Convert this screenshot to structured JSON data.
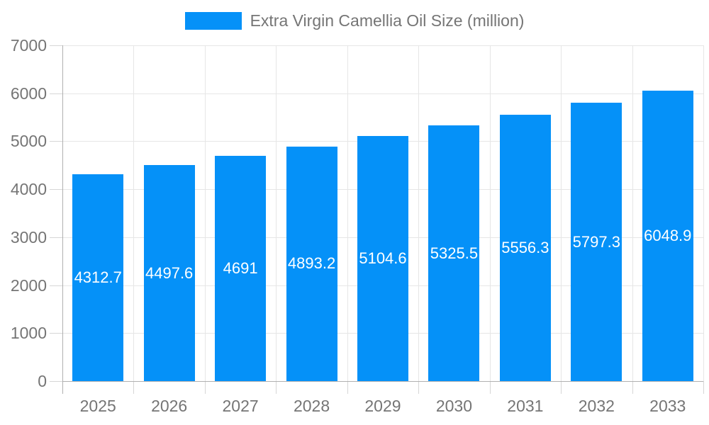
{
  "legend": {
    "label": "Extra Virgin Camellia Oil Size (million)"
  },
  "chart_data": {
    "type": "bar",
    "title": "",
    "xlabel": "",
    "ylabel": "",
    "categories": [
      "2025",
      "2026",
      "2027",
      "2028",
      "2029",
      "2030",
      "2031",
      "2032",
      "2033"
    ],
    "series": [
      {
        "name": "Extra Virgin Camellia Oil Size (million)",
        "values": [
          4312.7,
          4497.6,
          4691,
          4893.2,
          5104.6,
          5325.5,
          5556.3,
          5797.3,
          6048.9
        ]
      }
    ],
    "value_labels": [
      "4312.7",
      "4497.6",
      "4691",
      "4893.2",
      "5104.6",
      "5325.5",
      "5556.3",
      "5797.3",
      "6048.9"
    ],
    "ylim": [
      0,
      7000
    ],
    "ytick_step": 1000,
    "yticks": [
      "0",
      "1000",
      "2000",
      "3000",
      "4000",
      "5000",
      "6000",
      "7000"
    ],
    "grid": true,
    "legend_position": "top-center",
    "colors": {
      "bar": "#0591f8",
      "value_label": "#ffffff",
      "axis_text": "#757575",
      "axis_line": "#b0b0b0",
      "grid_line": "#e6e6e6",
      "tick_line": "#d6d6d6",
      "background": "#ffffff"
    }
  }
}
